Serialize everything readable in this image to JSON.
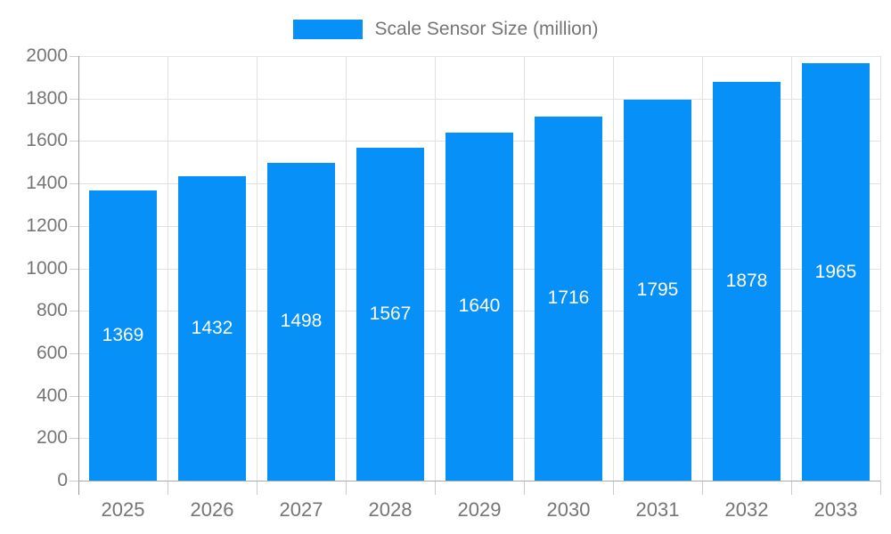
{
  "chart_data": {
    "type": "bar",
    "title": "Scale Sensor Size (million)",
    "categories": [
      "2025",
      "2026",
      "2027",
      "2028",
      "2029",
      "2030",
      "2031",
      "2032",
      "2033"
    ],
    "values": [
      1369,
      1432,
      1498,
      1567,
      1640,
      1716,
      1795,
      1878,
      1965
    ],
    "yticks": [
      0,
      200,
      400,
      600,
      800,
      1000,
      1200,
      1400,
      1600,
      1800,
      2000
    ],
    "ylim": [
      0,
      2000
    ],
    "xlabel": "",
    "ylabel": "",
    "grid": true,
    "legend_position": "top-center",
    "colors": {
      "bar": "#0690f8",
      "value_label": "#ffffff",
      "axis_text": "#757575",
      "legend_text": "#757575",
      "gridline": "#e2e2e2",
      "axis_line_y": "#999999",
      "axis_line_x": "#ababab",
      "tick": "#cccccc"
    }
  }
}
